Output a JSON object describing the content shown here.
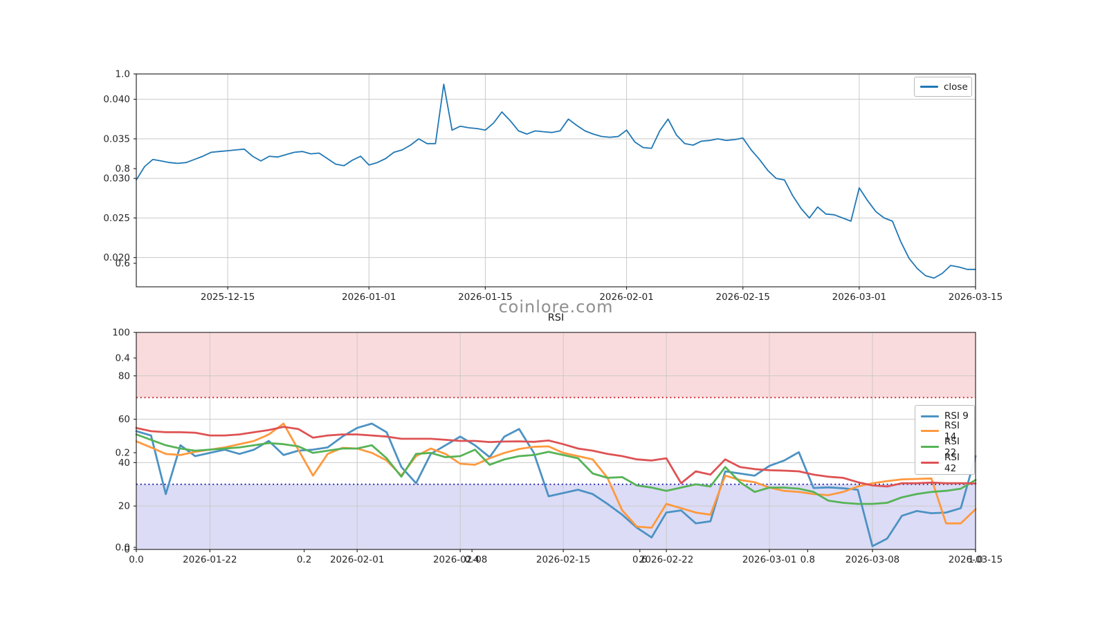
{
  "watermark": {
    "text": "coinlore.com"
  },
  "grid_color": "#c9c9c9",
  "spine_color": "#2b2b2b",
  "tick_label_color": "#262626",
  "overlay_axis": {
    "comment": "transparent 0-1 axis overlapping both charts (watermark axis)",
    "x_tick_labels": [
      "0.0",
      "0.2",
      "0.4",
      "0.6",
      "0.8",
      "1.0"
    ],
    "y_tick_labels": [
      "1.0",
      "0.8",
      "0.6",
      "0.4",
      "0.2",
      "0.0"
    ]
  },
  "chart_data": [
    {
      "type": "line",
      "title": "",
      "x_start": "2025-12-04",
      "x_interval_days": 1,
      "x_end": "2026-03-15",
      "x_tick_labels": [
        "2025-12-15",
        "2026-01-01",
        "2026-01-15",
        "2026-02-01",
        "2026-02-15",
        "2026-03-01",
        "2026-03-15"
      ],
      "x_tick_day_offsets": [
        11,
        28,
        42,
        59,
        73,
        87,
        101
      ],
      "y_tick_labels": [
        "0.020",
        "0.025",
        "0.030",
        "0.035",
        "0.040"
      ],
      "y_tick_values": [
        0.02,
        0.025,
        0.03,
        0.035,
        0.04
      ],
      "ylim": [
        0.0163,
        0.0432
      ],
      "grid": true,
      "legend_position": "upper right",
      "series": [
        {
          "name": "close",
          "color": "#1f77b4",
          "values": [
            0.0298,
            0.0315,
            0.0324,
            0.0322,
            0.032,
            0.0319,
            0.032,
            0.0324,
            0.0328,
            0.0333,
            0.0334,
            0.0335,
            0.0336,
            0.0337,
            0.0328,
            0.0322,
            0.0328,
            0.0327,
            0.033,
            0.0333,
            0.0334,
            0.0331,
            0.0332,
            0.0325,
            0.0318,
            0.0316,
            0.0323,
            0.0328,
            0.0317,
            0.032,
            0.0325,
            0.0333,
            0.0336,
            0.0342,
            0.035,
            0.0344,
            0.0344,
            0.0419,
            0.0361,
            0.0366,
            0.0364,
            0.0363,
            0.0361,
            0.037,
            0.0384,
            0.0373,
            0.036,
            0.0356,
            0.036,
            0.0359,
            0.0358,
            0.036,
            0.0375,
            0.0367,
            0.036,
            0.0356,
            0.0353,
            0.0352,
            0.0353,
            0.0361,
            0.0346,
            0.0339,
            0.0338,
            0.036,
            0.0375,
            0.0355,
            0.0344,
            0.0342,
            0.0347,
            0.0348,
            0.035,
            0.0348,
            0.0349,
            0.0351,
            0.0336,
            0.0324,
            0.031,
            0.03,
            0.0298,
            0.0278,
            0.0262,
            0.025,
            0.0264,
            0.0255,
            0.0254,
            0.025,
            0.0246,
            0.0288,
            0.0272,
            0.0258,
            0.025,
            0.0246,
            0.022,
            0.0199,
            0.0186,
            0.0177,
            0.0174,
            0.018,
            0.019,
            0.0188,
            0.0185,
            0.0185
          ]
        }
      ]
    },
    {
      "type": "line",
      "title": "RSI",
      "x_start": "2026-01-17",
      "x_interval_days": 1,
      "x_end": "2026-03-15",
      "x_tick_labels": [
        "2026-01-22",
        "2026-02-01",
        "2026-02-08",
        "2026-02-15",
        "2026-02-22",
        "2026-03-01",
        "2026-03-08",
        "2026-03-15"
      ],
      "x_tick_day_offsets": [
        5,
        15,
        22,
        29,
        36,
        43,
        50,
        57
      ],
      "y_tick_labels": [
        "0",
        "20",
        "40",
        "60",
        "80",
        "100"
      ],
      "y_tick_values": [
        0,
        20,
        40,
        60,
        80,
        100
      ],
      "ylim": [
        0,
        100
      ],
      "grid": true,
      "legend_position": "right",
      "bands": [
        {
          "from": 70,
          "to": 100,
          "color": "#fadbdd",
          "meaning": "overbought"
        },
        {
          "from": 0,
          "to": 30,
          "color": "#dcdcf6",
          "meaning": "oversold"
        }
      ],
      "ref_lines": [
        {
          "value": 70,
          "color": "#d42a33",
          "style": "dotted"
        },
        {
          "value": 30,
          "color": "#2a2ab0",
          "style": "dotted"
        }
      ],
      "series": [
        {
          "name": "RSI 9",
          "color": "#4c92c3",
          "values": [
            54.5,
            52.5,
            25.5,
            48,
            43,
            44.5,
            46,
            44,
            46,
            50,
            43.5,
            45.5,
            46,
            47,
            52,
            56,
            58,
            54,
            38,
            30.5,
            44,
            48,
            52,
            48,
            42.5,
            52,
            55.5,
            44.5,
            24.5,
            26,
            27.5,
            25.5,
            21,
            16,
            10,
            5.5,
            17,
            18,
            12,
            13,
            36,
            35,
            34,
            38.5,
            41,
            44.8,
            28.3,
            28.6,
            28.2,
            27.5,
            1.5,
            5,
            15.5,
            17.7,
            16.7,
            17,
            19,
            43
          ]
        },
        {
          "name": "RSI 14",
          "color": "#ff993e",
          "values": [
            49.8,
            47,
            44,
            43.5,
            45,
            46,
            47,
            48.5,
            50,
            53,
            58,
            46,
            34,
            44,
            46.8,
            46.5,
            44.5,
            41,
            34,
            43,
            46.5,
            44,
            39.5,
            39,
            42,
            44.5,
            46.3,
            47.3,
            47.5,
            44.5,
            43,
            41.5,
            33,
            18,
            10.5,
            10,
            21,
            19,
            17,
            16,
            34,
            32,
            31,
            28.5,
            27,
            26.5,
            25.5,
            25,
            26.5,
            29,
            30.5,
            31.5,
            32.3,
            32.5,
            32.7,
            12,
            12,
            18.5
          ]
        },
        {
          "name": "RSI 22",
          "color": "#56b356",
          "values": [
            53,
            50.5,
            48,
            46.5,
            45.5,
            46,
            46.5,
            47,
            48,
            49,
            48.5,
            47.5,
            44.5,
            45.5,
            46.5,
            46.5,
            48,
            42,
            33.5,
            44,
            44.5,
            42.5,
            43,
            46,
            39,
            41.5,
            43,
            43.5,
            45,
            43.5,
            42,
            35,
            33,
            33.3,
            29.5,
            28.5,
            27,
            28.5,
            30,
            29,
            38,
            31,
            26.5,
            28.5,
            28.5,
            28,
            26.5,
            22.5,
            21.5,
            21,
            21,
            21.5,
            24,
            25.5,
            26.5,
            27,
            28,
            32
          ]
        },
        {
          "name": "RSI 42",
          "color": "#de5253",
          "values": [
            56,
            54.5,
            54,
            54,
            53.8,
            52.5,
            52.5,
            53,
            54,
            55,
            56.5,
            55.5,
            51.5,
            52.5,
            53,
            53,
            52.5,
            52,
            51,
            51,
            51,
            50.5,
            50,
            50,
            49.5,
            49.7,
            49.8,
            49.6,
            50.2,
            48.5,
            46.5,
            45.5,
            44,
            43,
            41.5,
            41,
            42,
            30.5,
            36,
            34.5,
            41.5,
            38,
            37,
            36.5,
            36.3,
            36,
            34.5,
            33.5,
            33,
            31,
            29.5,
            29,
            30.5,
            30.5,
            30.8,
            30.5,
            30.5,
            30.4
          ]
        }
      ]
    }
  ]
}
